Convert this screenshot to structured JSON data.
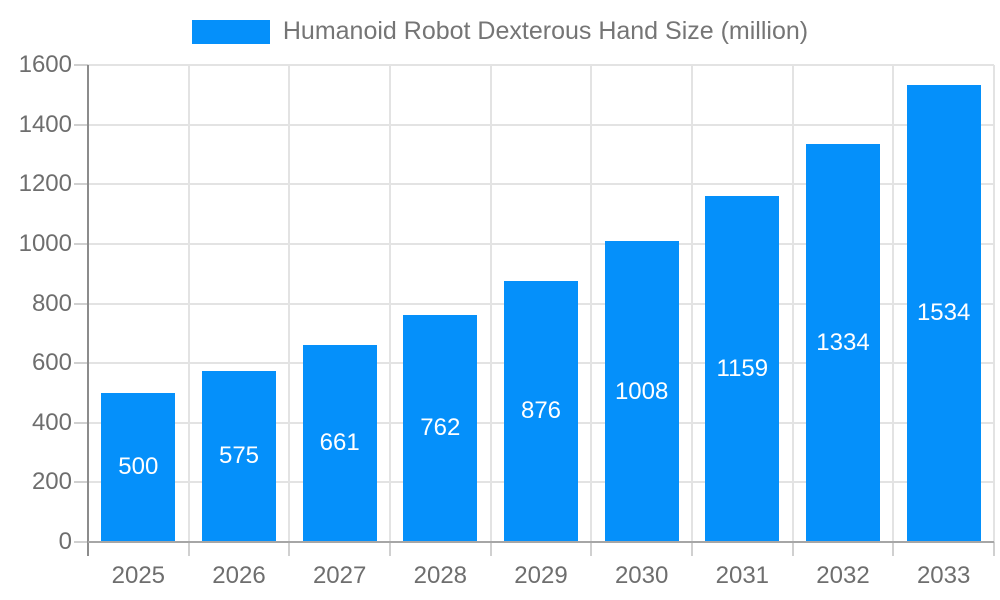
{
  "legend": {
    "label": "Humanoid Robot Dexterous Hand Size (million)"
  },
  "colors": {
    "bar": "#0590fa",
    "legend_text": "#757575",
    "axis_text": "#6e6e6e",
    "grid": "#e3e3e3",
    "tick": "#d0d0d0",
    "axis_line_y": "#8c8c8c",
    "axis_line_x": "#a6a6a6",
    "value_label": "#ffffff",
    "background": "#ffffff"
  },
  "chart_data": {
    "type": "bar",
    "title": "Humanoid Robot Dexterous Hand Size (million)",
    "series": [
      {
        "name": "Humanoid Robot Dexterous Hand Size (million)",
        "values": [
          500,
          575,
          661,
          762,
          876,
          1008,
          1159,
          1334,
          1534
        ]
      }
    ],
    "categories": [
      "2025",
      "2026",
      "2027",
      "2028",
      "2029",
      "2030",
      "2031",
      "2032",
      "2033"
    ],
    "value_labels": [
      "500",
      "575",
      "661",
      "762",
      "876",
      "1008",
      "1159",
      "1334",
      "1534"
    ],
    "xlabel": "",
    "ylabel": "",
    "ylim": [
      0,
      1600
    ],
    "yticks": [
      0,
      200,
      400,
      600,
      800,
      1000,
      1200,
      1400,
      1600
    ],
    "ytick_labels": [
      "0",
      "200",
      "400",
      "600",
      "800",
      "1000",
      "1200",
      "1400",
      "1600"
    ],
    "grid": true,
    "legend_position": "top",
    "value_label_position": "inside-center"
  }
}
